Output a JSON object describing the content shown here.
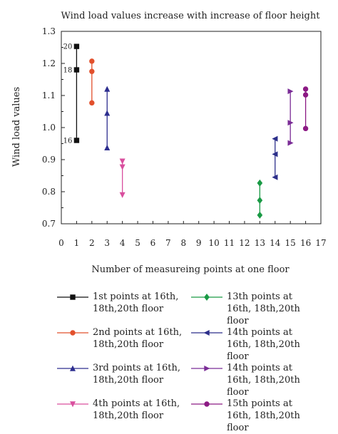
{
  "chart_data": {
    "type": "scatter",
    "title": "Wind load values increase with increase of floor height",
    "xlabel": "Number of measureing points at one floor",
    "ylabel": "Wind load values",
    "xlim": [
      0,
      17
    ],
    "ylim": [
      0.7,
      1.3
    ],
    "x_ticks": [
      "0",
      "1",
      "2",
      "3",
      "4",
      "5",
      "6",
      "7",
      "8",
      "9",
      "10",
      "11",
      "12",
      "13",
      "14",
      "15",
      "16",
      "17"
    ],
    "y_ticks": [
      "0.7",
      "0.8",
      "0.9",
      "1.0",
      "1.1",
      "1.2",
      "1.3"
    ],
    "grid": false,
    "legend_position": "bottom",
    "annotations": [
      {
        "text": "20",
        "x": 1,
        "y": 1.253
      },
      {
        "text": "18",
        "x": 1,
        "y": 1.18
      },
      {
        "text": "16",
        "x": 1,
        "y": 0.96
      }
    ],
    "series": [
      {
        "name": "1st points at 16th, 18th,20th floor",
        "x": 1,
        "values": [
          0.96,
          1.18,
          1.253
        ],
        "marker": "square",
        "color": "#111111"
      },
      {
        "name": "2nd points at 16th, 18th,20th floor",
        "x": 2,
        "values": [
          1.077,
          1.175,
          1.207
        ],
        "marker": "circle",
        "color": "#e2502c"
      },
      {
        "name": "3rd points at 16th, 18th,20th floor",
        "x": 3,
        "values": [
          0.937,
          1.045,
          1.12
        ],
        "marker": "triangle-up",
        "color": "#2d2e8f"
      },
      {
        "name": "4th points at 16th, 18th,20th floor",
        "x": 4,
        "values": [
          0.79,
          0.877,
          0.895
        ],
        "marker": "triangle-down",
        "color": "#d94f9e"
      },
      {
        "name": "13th points at 16th, 18th,20th floor",
        "x": 13,
        "values": [
          0.727,
          0.773,
          0.827
        ],
        "marker": "diamond",
        "color": "#1a9a45"
      },
      {
        "name": "14th points at 16th, 18th,20th floor",
        "x": 14,
        "values": [
          0.845,
          0.917,
          0.965
        ],
        "marker": "triangle-left",
        "color": "#2c2f8a"
      },
      {
        "name": "14th points at 16th, 18th,20th floor",
        "x": 15,
        "values": [
          0.952,
          1.015,
          1.113
        ],
        "marker": "triangle-right",
        "color": "#7a2c96"
      },
      {
        "name": "15th points at 16th, 18th,20th floor",
        "x": 16,
        "values": [
          0.997,
          1.102,
          1.12
        ],
        "marker": "circle",
        "color": "#8c1a84"
      }
    ]
  }
}
